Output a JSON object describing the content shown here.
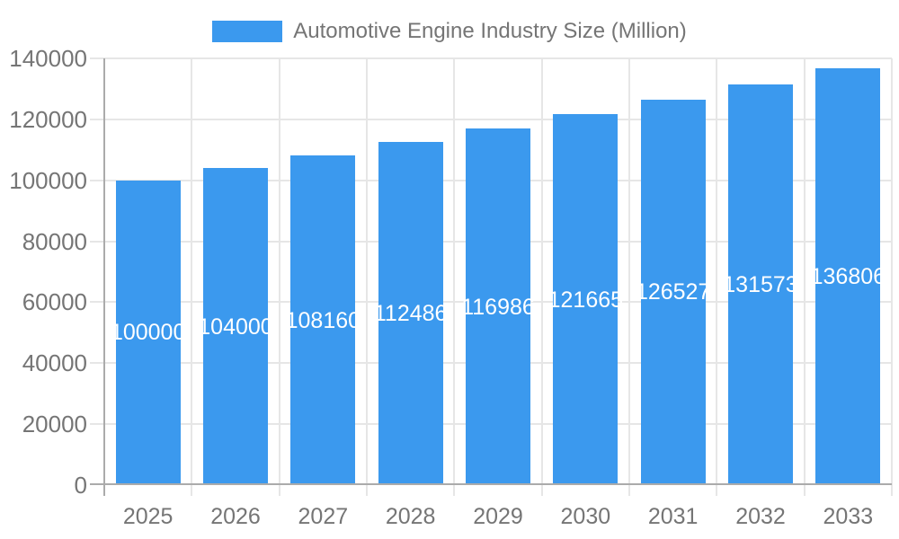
{
  "chart_data": {
    "type": "bar",
    "title": "Automotive Engine Industry Size (Million)",
    "categories": [
      "2025",
      "2026",
      "2027",
      "2028",
      "2029",
      "2030",
      "2031",
      "2032",
      "2033"
    ],
    "series": [
      {
        "name": "Automotive Engine Industry Size (Million)",
        "values": [
          100000,
          104000,
          108160,
          112486,
          116986,
          121665,
          126527,
          131573,
          136806
        ]
      }
    ],
    "bar_labels": [
      "100000",
      "104000",
      "108160",
      "112486",
      "116986",
      "121665",
      "126527",
      "131573",
      "136806"
    ],
    "xlabel": "",
    "ylabel": "",
    "ylim": [
      0,
      140000
    ],
    "ytick_interval": 20000,
    "ytick_labels": [
      "0",
      "20000",
      "40000",
      "60000",
      "80000",
      "100000",
      "120000",
      "140000"
    ],
    "grid": "horizontal and vertical light gray gridlines",
    "legend_position": "top-center"
  },
  "colors": {
    "bar": "#3b99ee",
    "grid": "#e6e6e6",
    "axis": "#ababab",
    "axis_text": "#757575",
    "bar_label_text": "#ffffff",
    "background": "#ffffff"
  }
}
